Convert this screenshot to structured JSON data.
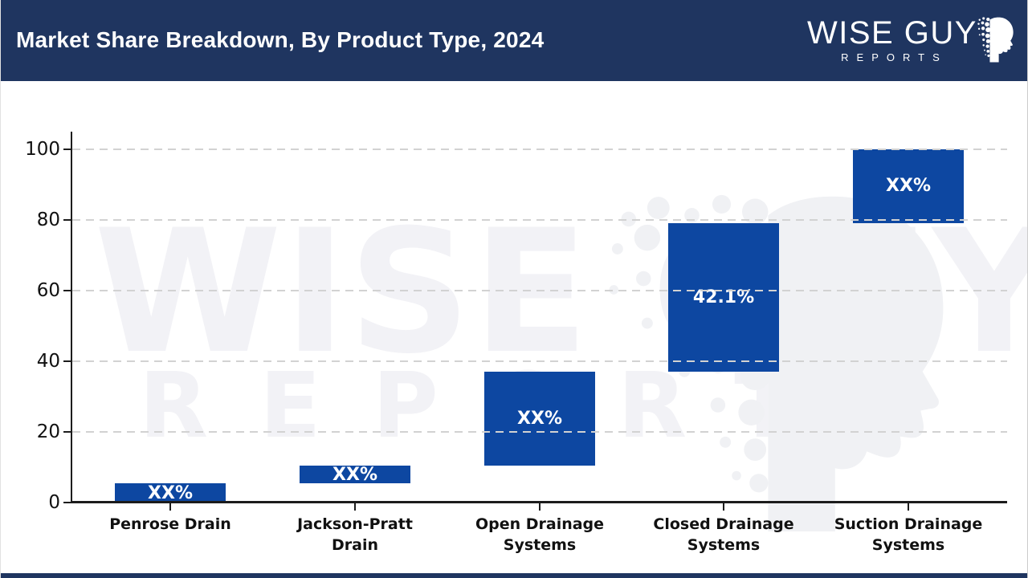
{
  "header": {
    "title": "Market Share Breakdown, By Product Type, 2024",
    "logo": {
      "line1": "WISE GUY",
      "line2": "REPORTS"
    }
  },
  "watermark": {
    "line1": "WISE GUY",
    "line2": "REPORTS"
  },
  "footer": {},
  "colors": {
    "header_navy": "#1f3560",
    "bar_blue": "#0d47a1",
    "grid_gray": "#d2d2d2",
    "axis_black": "#1c1c1c",
    "watermark_gray": "#f2f2f6"
  },
  "chart_data": {
    "type": "bar",
    "subtype": "floating-waterfall",
    "title": "Market Share Breakdown, By Product Type, 2024",
    "xlabel": "",
    "ylabel": "",
    "ylim": [
      0,
      105
    ],
    "yticks": [
      0,
      20,
      40,
      60,
      80,
      100
    ],
    "grid": "dashed-horizontal",
    "legend": null,
    "categories": [
      "Penrose Drain",
      "Jackson-Pratt Drain",
      "Open Drainage Systems",
      "Closed Drainage Systems",
      "Suction Drainage Systems"
    ],
    "bars": [
      {
        "category": "Penrose Drain",
        "label_lines": [
          "Penrose Drain"
        ],
        "start": 0,
        "end": 5.4,
        "value": 5.4,
        "value_label": "XX%"
      },
      {
        "category": "Jackson-Pratt Drain",
        "label_lines": [
          "Jackson-Pratt",
          "Drain"
        ],
        "start": 5.4,
        "end": 10.4,
        "value": 5.0,
        "value_label": "XX%"
      },
      {
        "category": "Open Drainage Systems",
        "label_lines": [
          "Open Drainage",
          "Systems"
        ],
        "start": 10.4,
        "end": 37.0,
        "value": 26.6,
        "value_label": "XX%"
      },
      {
        "category": "Closed Drainage Systems",
        "label_lines": [
          "Closed Drainage",
          "Systems"
        ],
        "start": 37.0,
        "end": 79.1,
        "value": 42.1,
        "value_label": "42.1%"
      },
      {
        "category": "Suction Drainage Systems",
        "label_lines": [
          "Suction Drainage",
          "Systems"
        ],
        "start": 79.1,
        "end": 100.0,
        "value": 20.9,
        "value_label": "XX%"
      }
    ]
  }
}
